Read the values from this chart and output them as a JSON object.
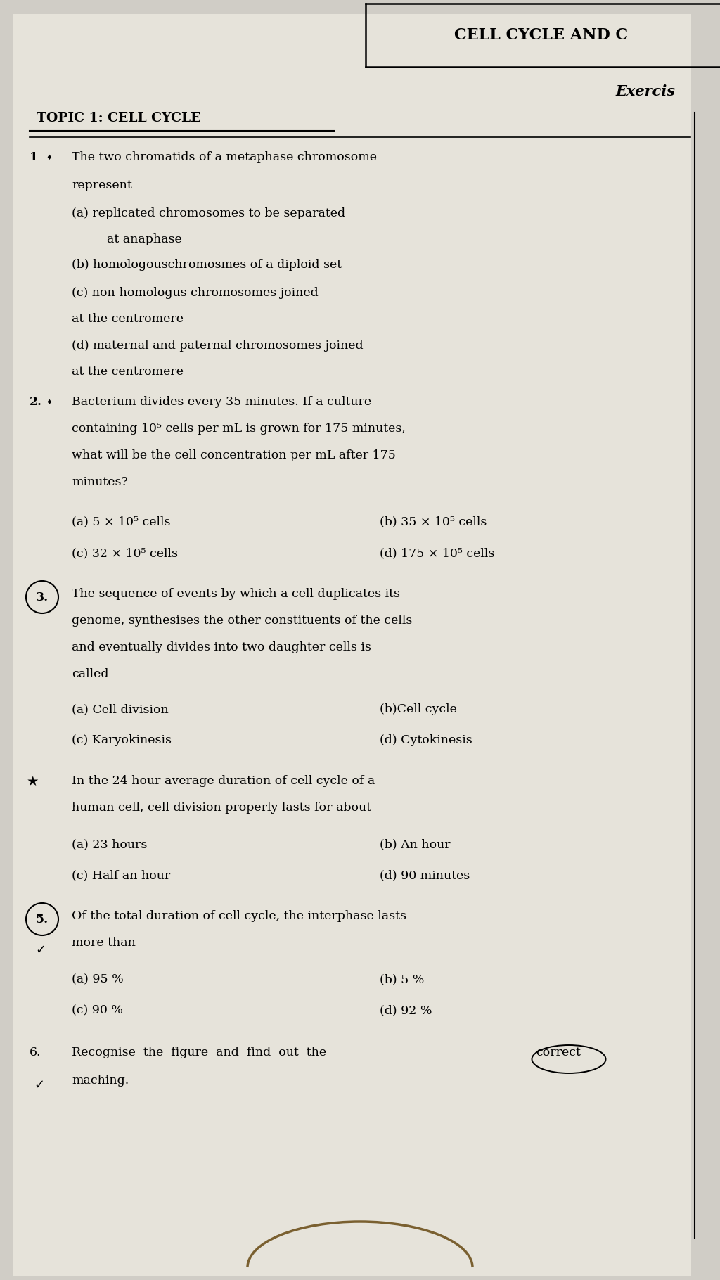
{
  "bg_color": "#d0cdc6",
  "paper_color": "#e6e3da",
  "header_text": "CELL CYCLE AND C",
  "exercise_text": "Exercis",
  "topic_title": "TOPIC 1: CELL CYCLE",
  "q1_line1": "The two chromatids of a metaphase chromosome",
  "q1_line2": "represent",
  "q1a1": "(a) replicated chromosomes to be separated",
  "q1a1b": "    at anaphase",
  "q1a2": "(b) homologouschromosmes of a diploid set",
  "q1a3": "(c) non-homologus chromosomes joined",
  "q1a3b": "at the centromere",
  "q1a4": "(d) maternal and paternal chromosomes joined",
  "q1a4b": "at the centromere",
  "q2_lines": [
    "Bacterium divides every 35 minutes. If a culture",
    "containing 10⁵ cells per mL is grown for 175 minutes,",
    "what will be the cell concentration per mL after 175",
    "minutes?"
  ],
  "q2a": "(a) 5 × 10⁵ cells",
  "q2b": "(b) 35 × 10⁵ cells",
  "q2c": "(c) 32 × 10⁵ cells",
  "q2d": "(d) 175 × 10⁵ cells",
  "q3_lines": [
    "The sequence of events by which a cell duplicates its",
    "genome, synthesises the other constituents of the cells",
    "and eventually divides into two daughter cells is",
    "called"
  ],
  "q3a": "(a) Cell division",
  "q3b": "(b)Cell cycle",
  "q3c": "(c) Karyokinesis",
  "q3d": "(d) Cytokinesis",
  "q4_lines": [
    "In the 24 hour average duration of cell cycle of a",
    "human cell, cell division properly lasts for about"
  ],
  "q4a": "(a) 23 hours",
  "q4b": "(b) An hour",
  "q4c": "(c) Half an hour",
  "q4d": "(d) 90 minutes",
  "q5_lines": [
    "Of the total duration of cell cycle, the interphase lasts",
    "more than"
  ],
  "q5a": "(a) 95 %",
  "q5b": "(b) 5 %",
  "q5c": "(c) 90 %",
  "q5d": "(d) 92 %",
  "q6_line1": "Recognise  the  figure  and  find  out  the  ",
  "q6_correct": "correct",
  "q6_line2": "maching."
}
